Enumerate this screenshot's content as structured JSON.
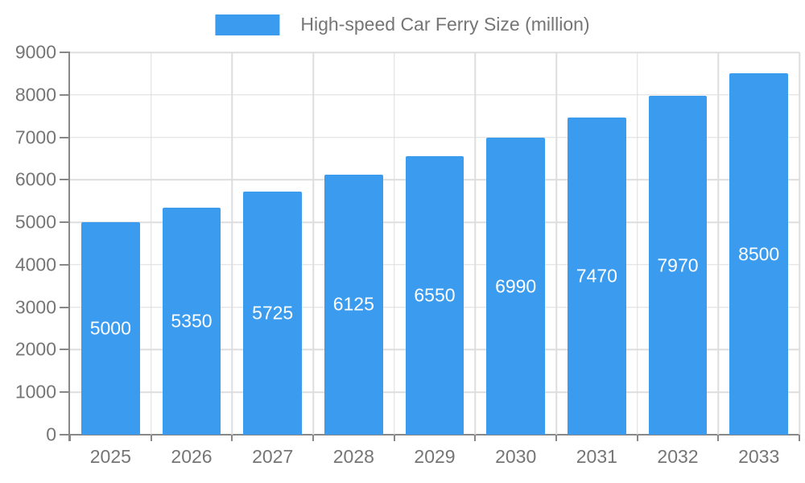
{
  "chart_data": {
    "type": "bar",
    "title": "High-speed Car Ferry Size (million)",
    "categories": [
      "2025",
      "2026",
      "2027",
      "2028",
      "2029",
      "2030",
      "2031",
      "2032",
      "2033"
    ],
    "values": [
      5000,
      5350,
      5725,
      6125,
      6550,
      6990,
      7470,
      7970,
      8500
    ],
    "xlabel": "",
    "ylabel": "",
    "ylim": [
      0,
      9000
    ],
    "yticks": [
      0,
      1000,
      2000,
      3000,
      4000,
      5000,
      6000,
      7000,
      8000,
      9000
    ],
    "grid": true,
    "legend_position": "top-center",
    "bar_value_labels_visible": true,
    "colors": {
      "bar": "#3B9CEF",
      "bar_label": "#FFFFFF",
      "grid": "#DDDDDD",
      "axis": "#888888",
      "text": "#757575",
      "background": "#FFFFFF"
    }
  }
}
